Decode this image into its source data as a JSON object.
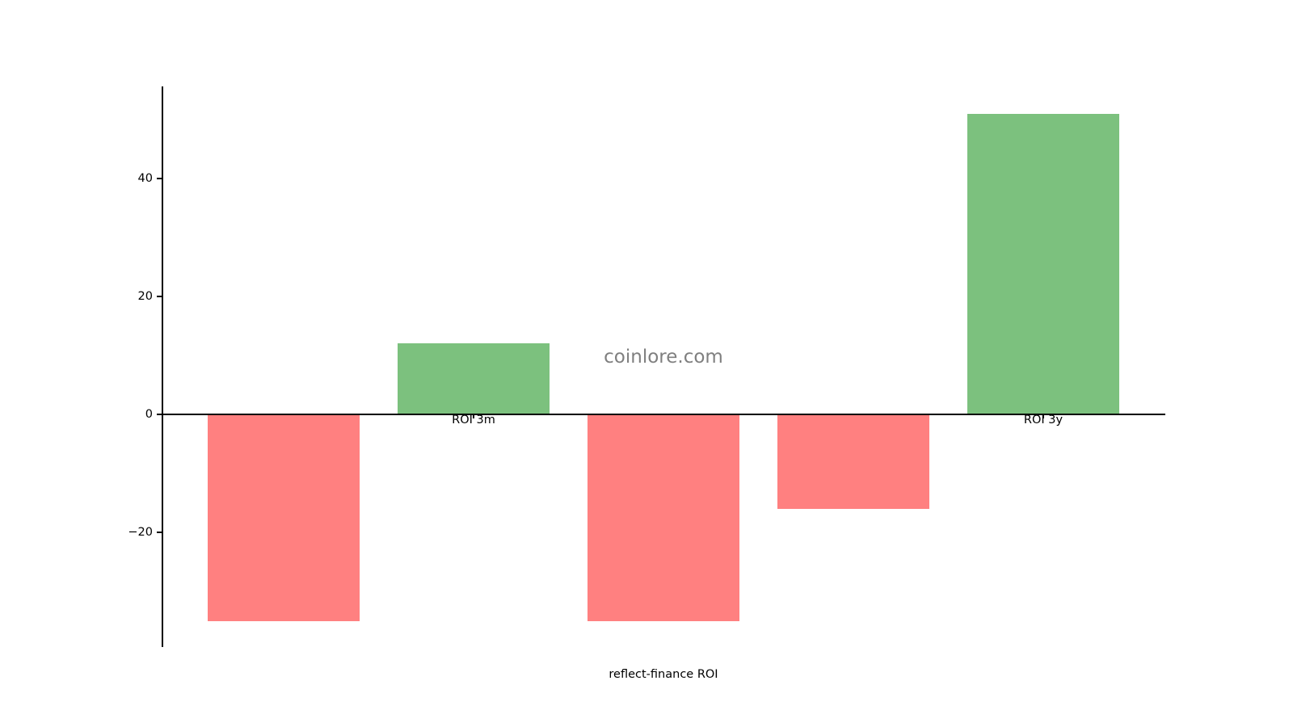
{
  "watermark": "coinlore.com",
  "chart_data": {
    "type": "bar",
    "title": "",
    "xlabel": "reflect-finance ROI",
    "ylabel": "",
    "categories": [
      "",
      "ROI 3m",
      "",
      "",
      "ROI 3y"
    ],
    "values": [
      -35,
      12,
      -35,
      -16,
      51
    ],
    "yticks": [
      {
        "v": -20,
        "label": "−20"
      },
      {
        "v": 0,
        "label": "0"
      },
      {
        "v": 20,
        "label": "20"
      },
      {
        "v": 40,
        "label": "40"
      }
    ],
    "ylim": [
      -39.4,
      55.6
    ],
    "xlim_categories": 5,
    "grid": false,
    "legend": false,
    "colors": {
      "positive": "#7cc17e",
      "negative": "#ff8080",
      "axis": "#000000",
      "watermark": "#7f7f7f"
    },
    "notes_visible_labels": [
      "ROI 3m",
      "ROI 3y"
    ]
  }
}
